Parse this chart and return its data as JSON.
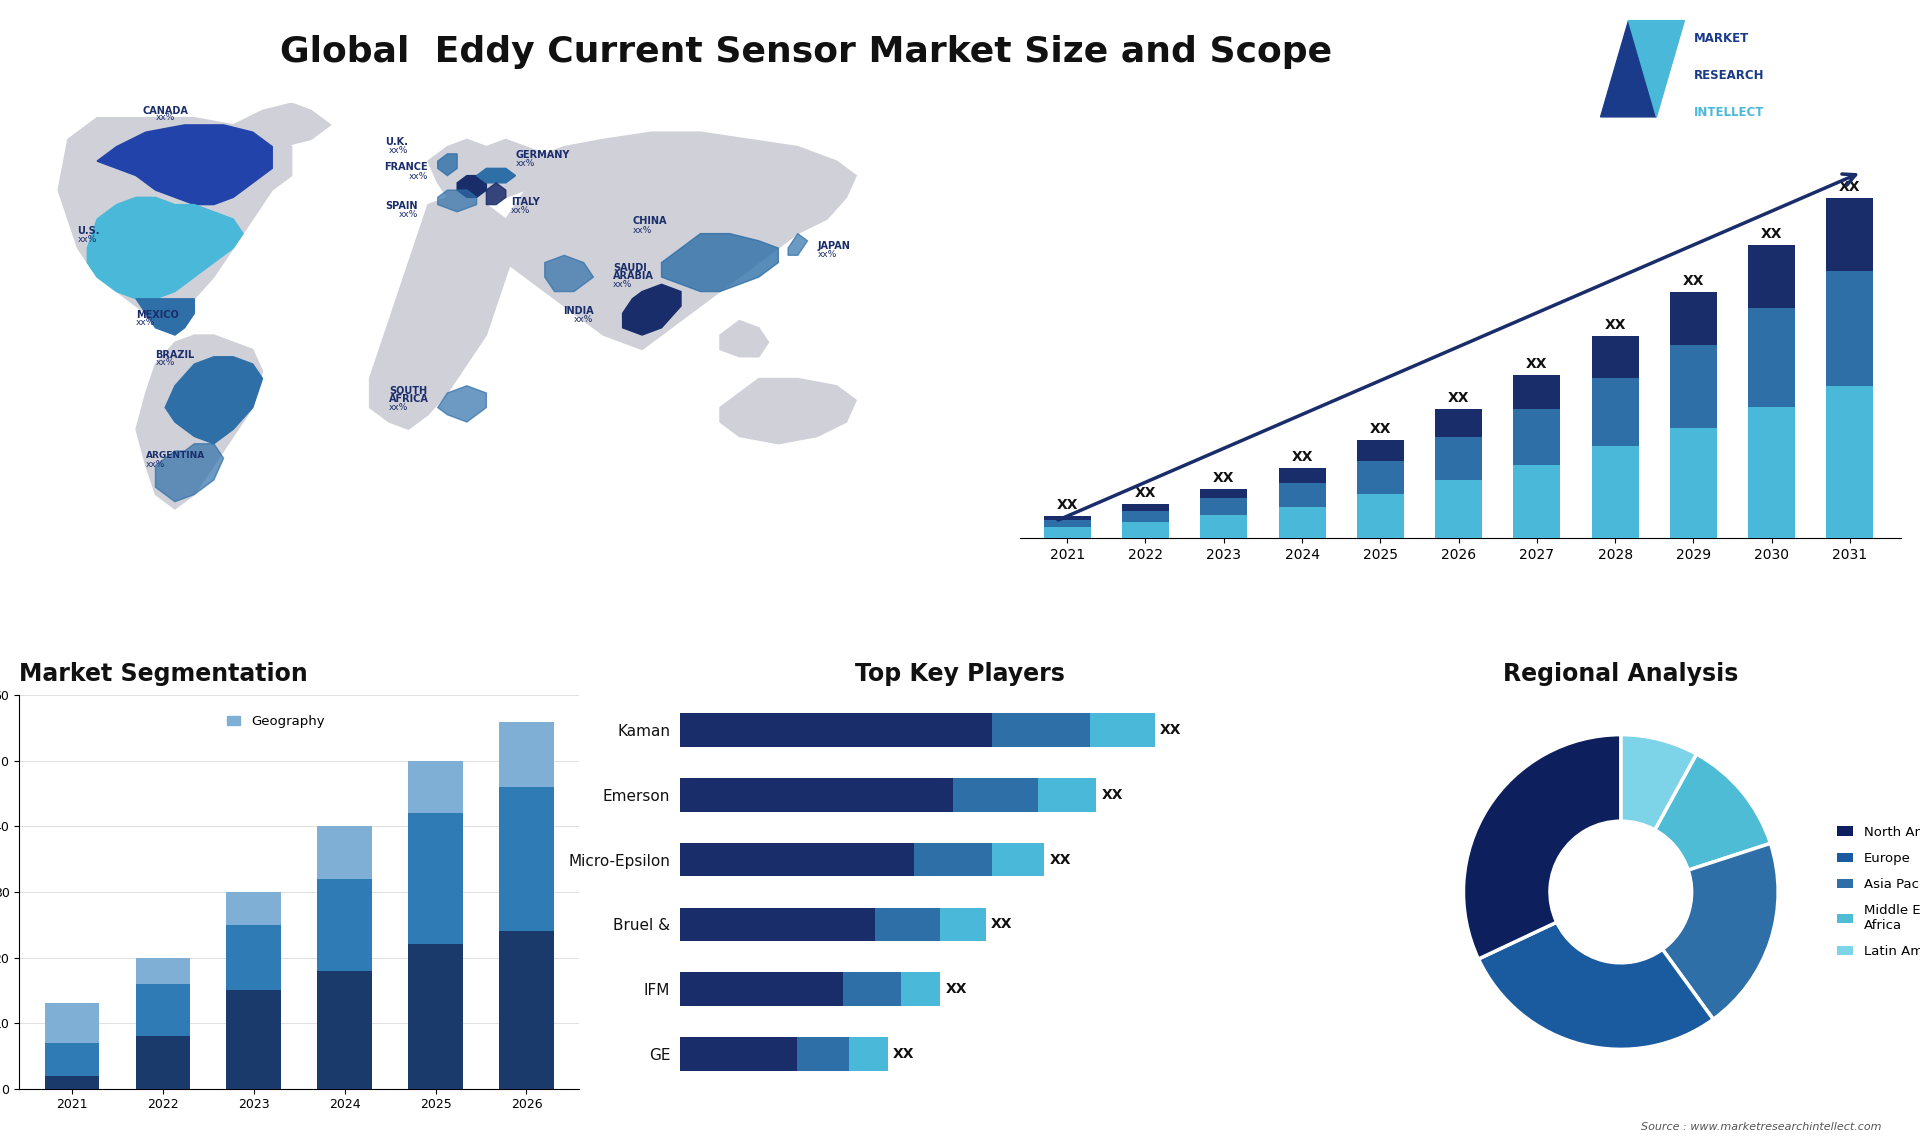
{
  "title": "Global  Eddy Current Sensor Market Size and Scope",
  "title_fontsize": 26,
  "background_color": "#ffffff",
  "bar_chart_years": [
    2021,
    2022,
    2023,
    2024,
    2025,
    2026,
    2027,
    2028,
    2029,
    2030,
    2031
  ],
  "bar_seg_bottom": [
    1.0,
    1.5,
    2.2,
    3.0,
    4.2,
    5.5,
    7.0,
    8.8,
    10.5,
    12.5,
    14.5
  ],
  "bar_seg_mid": [
    0.7,
    1.1,
    1.6,
    2.3,
    3.2,
    4.2,
    5.3,
    6.5,
    8.0,
    9.5,
    11.0
  ],
  "bar_seg_top": [
    0.4,
    0.6,
    0.9,
    1.4,
    2.0,
    2.6,
    3.3,
    4.0,
    5.0,
    6.0,
    7.0
  ],
  "bar_color_bottom": "#4ab8d8",
  "bar_color_mid": "#2e6fa8",
  "bar_color_top": "#1a2d6b",
  "bar_label": "XX",
  "seg_years": [
    2021,
    2022,
    2023,
    2024,
    2025,
    2026
  ],
  "seg_bottom": [
    2,
    8,
    15,
    18,
    22,
    24
  ],
  "seg_mid": [
    5,
    8,
    10,
    14,
    20,
    22
  ],
  "seg_top": [
    6,
    4,
    5,
    8,
    8,
    10
  ],
  "seg_color_bottom": "#1a3a6b",
  "seg_color_mid": "#2e7bb5",
  "seg_color_top": "#7fafd4",
  "seg_ylim": [
    0,
    60
  ],
  "seg_yticks": [
    0,
    10,
    20,
    30,
    40,
    50,
    60
  ],
  "seg_title": "Market Segmentation",
  "seg_legend": "Geography",
  "seg_legend_color": "#7fafd4",
  "players": [
    "Kaman",
    "Emerson",
    "Micro-Epsilon",
    "Bruel &",
    "IFM",
    "GE"
  ],
  "players_seg1": [
    48,
    42,
    36,
    30,
    25,
    18
  ],
  "players_seg2": [
    15,
    13,
    12,
    10,
    9,
    8
  ],
  "players_seg3": [
    10,
    9,
    8,
    7,
    6,
    6
  ],
  "players_color1": "#1a2d6b",
  "players_color2": "#2e6fa8",
  "players_color3": "#4ab8d8",
  "players_title": "Top Key Players",
  "pie_values": [
    8,
    12,
    20,
    28,
    32
  ],
  "pie_colors": [
    "#7dd4e8",
    "#4dbcd4",
    "#2e6fa8",
    "#1a5a9e",
    "#0d1f5c"
  ],
  "pie_labels": [
    "Latin America",
    "Middle East &\nAfrica",
    "Asia Pacific",
    "Europe",
    "North America"
  ],
  "pie_title": "Regional Analysis",
  "map_bg": "#ffffff",
  "continent_color": "#d0d0d8",
  "source_text": "Source : www.marketresearchintellect.com"
}
